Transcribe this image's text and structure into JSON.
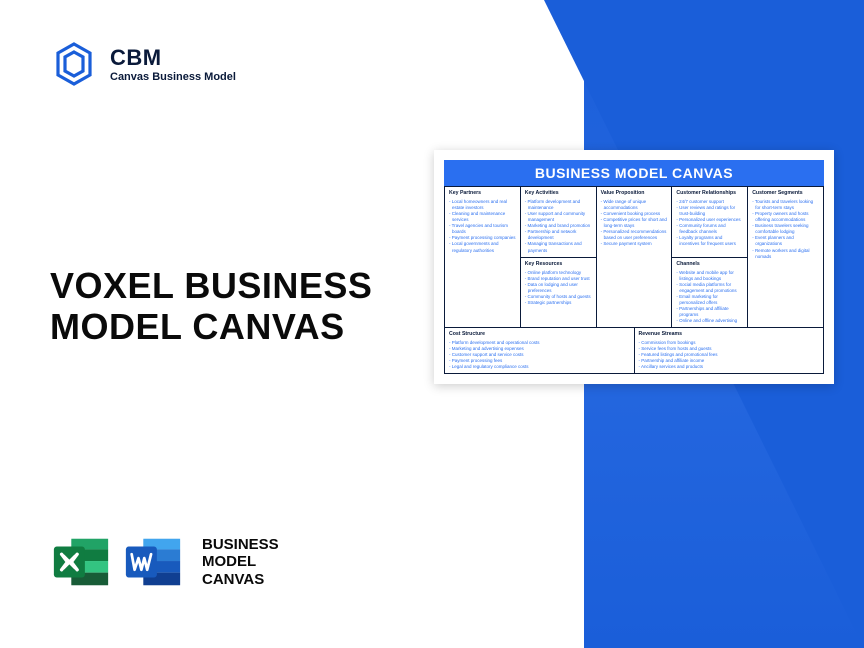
{
  "logo": {
    "title": "CBM",
    "subtitle": "Canvas Business Model"
  },
  "main_title_line1": "VOXEL BUSINESS",
  "main_title_line2": "MODEL CANVAS",
  "bmc_label_line1": "BUSINESS",
  "bmc_label_line2": "MODEL",
  "bmc_label_line3": "CANVAS",
  "canvas": {
    "header": "BUSINESS MODEL CANVAS",
    "colors": {
      "header_bg": "#2a6ff0",
      "text": "#2a6ff0",
      "title": "#0a1a3a",
      "border": "#0a1a3a"
    },
    "blocks": {
      "key_partners": {
        "title": "Key Partners",
        "items": [
          "Local homeowners and real estate investors",
          "Cleaning and maintenance services",
          "Travel agencies and tourism boards",
          "Payment processing companies",
          "Local governments and regulatory authorities"
        ]
      },
      "key_activities": {
        "title": "Key Activities",
        "items": [
          "Platform development and maintenance",
          "User support and community management",
          "Marketing and brand promotion",
          "Partnership and network development",
          "Managing transactions and payments"
        ]
      },
      "key_resources": {
        "title": "Key Resources",
        "items": [
          "Online platform technology",
          "Brand reputation and user trust",
          "Data on lodging and user preferences",
          "Community of hosts and guests",
          "Strategic partnerships"
        ]
      },
      "value_proposition": {
        "title": "Value Proposition",
        "items": [
          "Wide range of unique accommodations",
          "Convenient booking process",
          "Competitive prices for short and long-term stays",
          "Personalized recommendations based on user preferences",
          "Secure payment system"
        ]
      },
      "customer_relationships": {
        "title": "Customer Relationships",
        "items": [
          "24/7 customer support",
          "User reviews and ratings for trust-building",
          "Personalized user experiences",
          "Community forums and feedback channels",
          "Loyalty programs and incentives for frequent users"
        ]
      },
      "channels": {
        "title": "Channels",
        "items": [
          "Website and mobile app for listings and bookings",
          "Social media platforms for engagement and promotions",
          "Email marketing for personalized offers",
          "Partnerships and affiliate programs",
          "Online and offline advertising"
        ]
      },
      "customer_segments": {
        "title": "Customer Segments",
        "items": [
          "Tourists and travelers looking for short-term stays",
          "Property owners and hosts offering accommodations",
          "Business travelers seeking comfortable lodging",
          "Event planners and organizations",
          "Remote workers and digital nomads"
        ]
      },
      "cost_structure": {
        "title": "Cost Structure",
        "items": [
          "Platform development and operational costs",
          "Marketing and advertising expenses",
          "Customer support and service costs",
          "Payment processing fees",
          "Legal and regulatory compliance costs"
        ]
      },
      "revenue_streams": {
        "title": "Revenue Streams",
        "items": [
          "Commission from bookings",
          "Service fees from hosts and guests",
          "Featured listings and promotional fees",
          "Partnership and affiliate income",
          "Ancillary services and products"
        ]
      }
    }
  }
}
